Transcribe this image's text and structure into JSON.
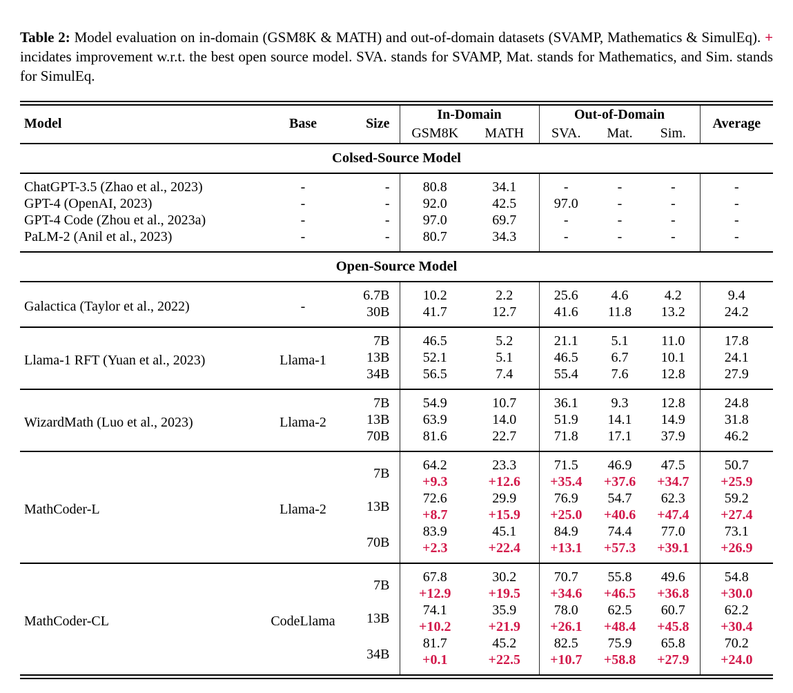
{
  "colors": {
    "accent_red": "#d2194a"
  },
  "caption": {
    "label": "Table 2:",
    "text_before_plus": "Model evaluation on in-domain (GSM8K & MATH) and out-of-domain datasets (SVAMP, Mathematics & SimulEq).",
    "plus_sign": "+",
    "text_after_plus": "incidates improvement w.r.t. the best open source model. SVA. stands for SVAMP, Mat. stands for Mathematics, and Sim. stands for SimulEq."
  },
  "table": {
    "columns": [
      "Model",
      "Base",
      "Size"
    ],
    "group_headers": {
      "in_domain": "In-Domain",
      "out_of_domain": "Out-of-Domain",
      "average": "Average"
    },
    "sub_columns": [
      "GSM8K",
      "MATH",
      "SVA.",
      "Mat.",
      "Sim."
    ],
    "sections": [
      {
        "title": "Colsed-Source Model",
        "divide_groups": false,
        "groups": [
          {
            "model": "ChatGPT-3.5 (Zhao et al., 2023)",
            "base": "-",
            "rows": [
              {
                "size": "-",
                "values": [
                  "80.8",
                  "34.1",
                  "-",
                  "-",
                  "-",
                  "-"
                ]
              }
            ]
          },
          {
            "model": "GPT-4 (OpenAI, 2023)",
            "base": "-",
            "rows": [
              {
                "size": "-",
                "values": [
                  "92.0",
                  "42.5",
                  "97.0",
                  "-",
                  "-",
                  "-"
                ]
              }
            ]
          },
          {
            "model": "GPT-4 Code (Zhou et al., 2023a)",
            "base": "-",
            "rows": [
              {
                "size": "-",
                "values": [
                  "97.0",
                  "69.7",
                  "-",
                  "-",
                  "-",
                  "-"
                ]
              }
            ]
          },
          {
            "model": "PaLM-2 (Anil et al., 2023)",
            "base": "-",
            "rows": [
              {
                "size": "-",
                "values": [
                  "80.7",
                  "34.3",
                  "-",
                  "-",
                  "-",
                  "-"
                ]
              }
            ]
          }
        ]
      },
      {
        "title": "Open-Source Model",
        "divide_groups": true,
        "groups": [
          {
            "model": "Galactica (Taylor et al., 2022)",
            "base": "-",
            "rows": [
              {
                "size": "6.7B",
                "values": [
                  "10.2",
                  "2.2",
                  "25.6",
                  "4.6",
                  "4.2",
                  "9.4"
                ]
              },
              {
                "size": "30B",
                "values": [
                  "41.7",
                  "12.7",
                  "41.6",
                  "11.8",
                  "13.2",
                  "24.2"
                ]
              }
            ]
          },
          {
            "model": "Llama-1 RFT (Yuan et al., 2023)",
            "base": "Llama-1",
            "rows": [
              {
                "size": "7B",
                "values": [
                  "46.5",
                  "5.2",
                  "21.1",
                  "5.1",
                  "11.0",
                  "17.8"
                ]
              },
              {
                "size": "13B",
                "values": [
                  "52.1",
                  "5.1",
                  "46.5",
                  "6.7",
                  "10.1",
                  "24.1"
                ]
              },
              {
                "size": "34B",
                "values": [
                  "56.5",
                  "7.4",
                  "55.4",
                  "7.6",
                  "12.8",
                  "27.9"
                ]
              }
            ]
          },
          {
            "model": "WizardMath (Luo et al., 2023)",
            "base": "Llama-2",
            "rows": [
              {
                "size": "7B",
                "values": [
                  "54.9",
                  "10.7",
                  "36.1",
                  "9.3",
                  "12.8",
                  "24.8"
                ]
              },
              {
                "size": "13B",
                "values": [
                  "63.9",
                  "14.0",
                  "51.9",
                  "14.1",
                  "14.9",
                  "31.8"
                ]
              },
              {
                "size": "70B",
                "values": [
                  "81.6",
                  "22.7",
                  "71.8",
                  "17.1",
                  "37.9",
                  "46.2"
                ]
              }
            ]
          },
          {
            "model": "MathCoder-L",
            "base": "Llama-2",
            "rows": [
              {
                "size": "7B",
                "values": [
                  "64.2",
                  "23.3",
                  "71.5",
                  "46.9",
                  "47.5",
                  "50.7"
                ],
                "deltas": [
                  "+9.3",
                  "+12.6",
                  "+35.4",
                  "+37.6",
                  "+34.7",
                  "+25.9"
                ]
              },
              {
                "size": "13B",
                "values": [
                  "72.6",
                  "29.9",
                  "76.9",
                  "54.7",
                  "62.3",
                  "59.2"
                ],
                "deltas": [
                  "+8.7",
                  "+15.9",
                  "+25.0",
                  "+40.6",
                  "+47.4",
                  "+27.4"
                ]
              },
              {
                "size": "70B",
                "values": [
                  "83.9",
                  "45.1",
                  "84.9",
                  "74.4",
                  "77.0",
                  "73.1"
                ],
                "deltas": [
                  "+2.3",
                  "+22.4",
                  "+13.1",
                  "+57.3",
                  "+39.1",
                  "+26.9"
                ]
              }
            ]
          },
          {
            "model": "MathCoder-CL",
            "base": "CodeLlama",
            "rows": [
              {
                "size": "7B",
                "values": [
                  "67.8",
                  "30.2",
                  "70.7",
                  "55.8",
                  "49.6",
                  "54.8"
                ],
                "deltas": [
                  "+12.9",
                  "+19.5",
                  "+34.6",
                  "+46.5",
                  "+36.8",
                  "+30.0"
                ]
              },
              {
                "size": "13B",
                "values": [
                  "74.1",
                  "35.9",
                  "78.0",
                  "62.5",
                  "60.7",
                  "62.2"
                ],
                "deltas": [
                  "+10.2",
                  "+21.9",
                  "+26.1",
                  "+48.4",
                  "+45.8",
                  "+30.4"
                ]
              },
              {
                "size": "34B",
                "values": [
                  "81.7",
                  "45.2",
                  "82.5",
                  "75.9",
                  "65.8",
                  "70.2"
                ],
                "deltas": [
                  "+0.1",
                  "+22.5",
                  "+10.7",
                  "+58.8",
                  "+27.9",
                  "+24.0"
                ]
              }
            ]
          }
        ]
      }
    ]
  }
}
